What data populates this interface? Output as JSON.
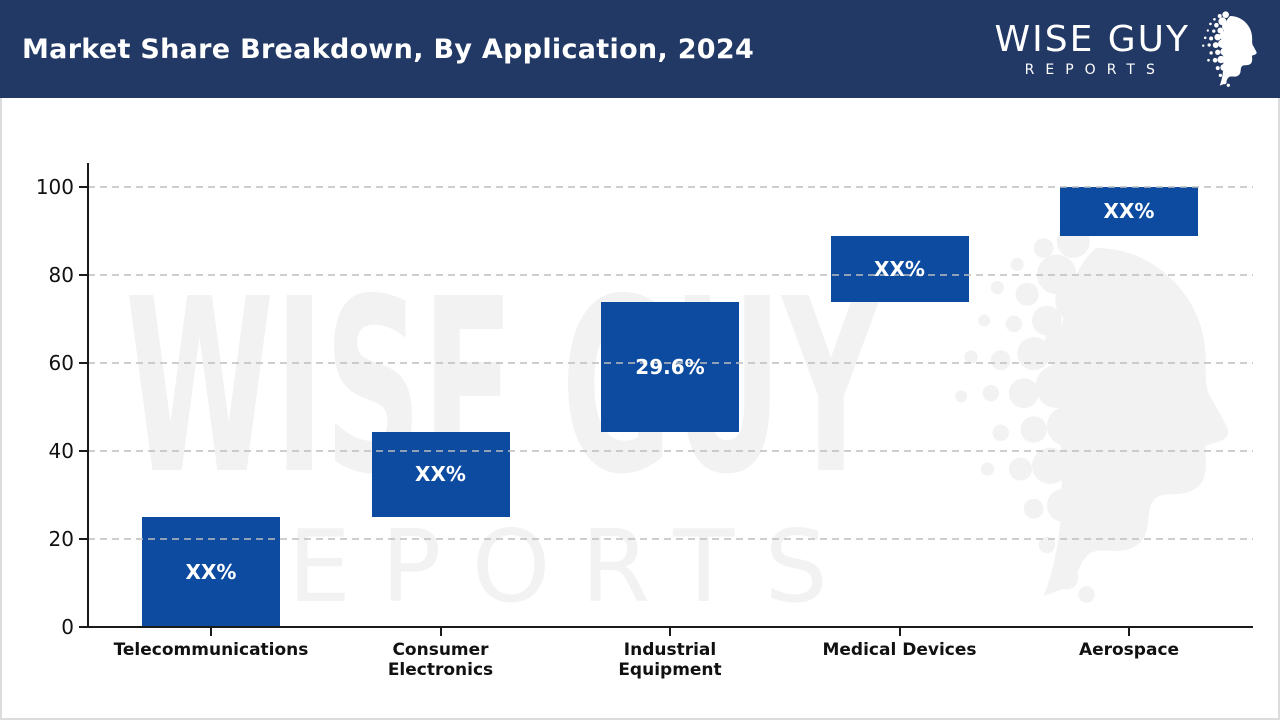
{
  "header": {
    "title": "Market Share Breakdown, By Application, 2024",
    "logo_line1": "WISE GUY",
    "logo_line2": "REPORTS"
  },
  "watermark": {
    "line1": "WISE GUY",
    "line2": "REPORTS"
  },
  "colors": {
    "header_bg": "#223965",
    "bar": "#0c4ba0",
    "bar_label": "#ffffff",
    "grid": "#d9d9d9",
    "axis": "#1a1a1a",
    "text": "#111111",
    "watermark": "#f2f2f2"
  },
  "chart_data": {
    "type": "bar",
    "subtype": "waterfall",
    "title": "Market Share Breakdown, By Application, 2024",
    "categories": [
      "Telecommunications",
      "Consumer\nElectronics",
      "Industrial\nEquipment",
      "Medical Devices",
      "Aerospace"
    ],
    "bar_labels": [
      "XX%",
      "XX%",
      "29.6%",
      "XX%",
      "XX%"
    ],
    "segments_start": [
      0,
      25,
      44.4,
      74,
      89
    ],
    "segments_end": [
      25,
      44.4,
      74,
      89,
      100
    ],
    "segment_values_pct": [
      25,
      19.4,
      29.6,
      15,
      11
    ],
    "yticks": [
      0,
      20,
      40,
      60,
      80,
      100
    ],
    "ylim": [
      0,
      105.5
    ],
    "xlabel": "",
    "ylabel": "",
    "grid": "horizontal-dashed",
    "legend": "none"
  }
}
